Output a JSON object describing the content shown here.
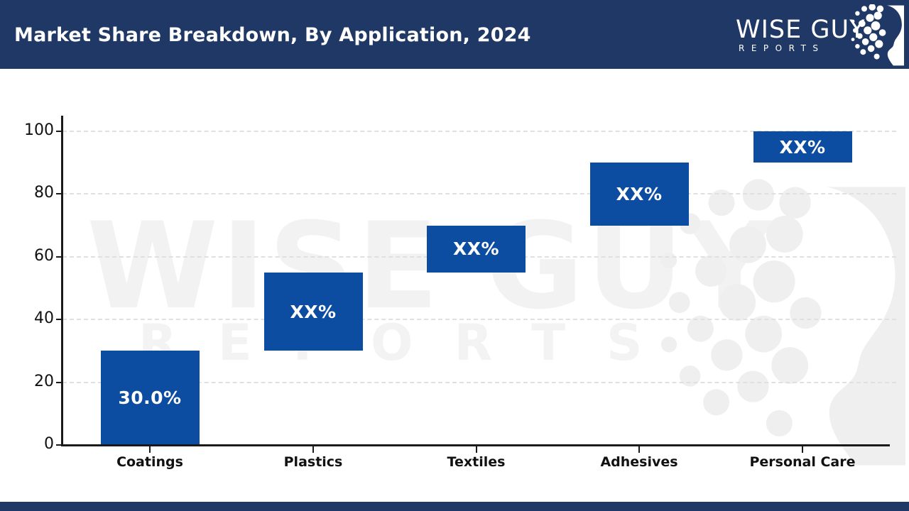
{
  "header": {
    "title": "Market Share Breakdown, By Application, 2024",
    "bg_color": "#1f3865"
  },
  "logo": {
    "line1": "WISE GUY",
    "line2": "REPORTS"
  },
  "watermark": {
    "line1": "WISE GUY",
    "line2": "REPORTS"
  },
  "chart_data": {
    "type": "bar",
    "subtype": "waterfall",
    "title": "Market Share Breakdown, By Application, 2024",
    "categories": [
      "Coatings",
      "Plastics",
      "Textiles",
      "Adhesives",
      "Personal Care"
    ],
    "segments": [
      {
        "category": "Coatings",
        "start": 0,
        "end": 30,
        "label": "30.0%"
      },
      {
        "category": "Plastics",
        "start": 30,
        "end": 55,
        "label": "XX%"
      },
      {
        "category": "Textiles",
        "start": 55,
        "end": 70,
        "label": "XX%"
      },
      {
        "category": "Adhesives",
        "start": 70,
        "end": 90,
        "label": "XX%"
      },
      {
        "category": "Personal Care",
        "start": 90,
        "end": 100,
        "label": "XX%"
      }
    ],
    "yticks": [
      0,
      20,
      40,
      60,
      80,
      100
    ],
    "ylim": [
      0,
      105
    ],
    "xlabel": "",
    "ylabel": "",
    "grid": "horizontal-dashed",
    "legend": "none",
    "bar_color": "#0c4da2",
    "bar_label_color": "#ffffff",
    "gridline_color": "#e0e0e0"
  }
}
